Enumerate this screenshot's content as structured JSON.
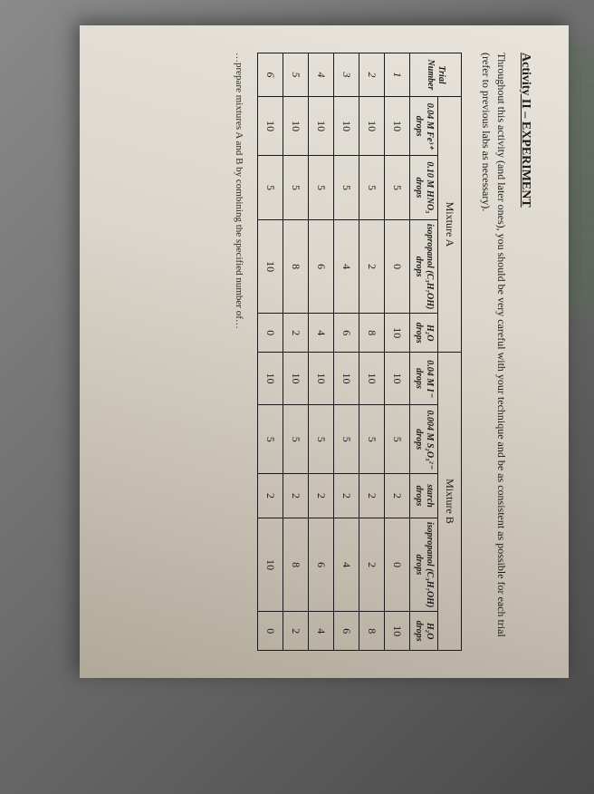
{
  "title": "Activity II – EXPERIMENT",
  "intro": "Throughout this activity (and later ones), you should be very careful with your technique and be as consistent as possible for each trial (refer to previous labs as necessary).",
  "table": {
    "mixtureA_label": "Mixture A",
    "mixtureB_label": "Mixture B",
    "trial_header": "Trial Number",
    "columns_a": [
      "0.04 M Fe³⁺ drops",
      "0.10 M HNO₃ drops",
      "isopropanol (C₃H₇OH) drops",
      "H₂O drops"
    ],
    "columns_b": [
      "0.04 M I⁻ drops",
      "0.004 M S₂O₃²⁻ drops",
      "starch drops",
      "isopropanol (C₃H₇OH) drops",
      "H₂O drops"
    ],
    "rows": [
      {
        "trial": "1",
        "a": [
          "10",
          "5",
          "0",
          "10"
        ],
        "b": [
          "10",
          "5",
          "2",
          "0",
          "10"
        ]
      },
      {
        "trial": "2",
        "a": [
          "10",
          "5",
          "2",
          "8"
        ],
        "b": [
          "10",
          "5",
          "2",
          "2",
          "8"
        ]
      },
      {
        "trial": "3",
        "a": [
          "10",
          "5",
          "4",
          "6"
        ],
        "b": [
          "10",
          "5",
          "2",
          "4",
          "6"
        ]
      },
      {
        "trial": "4",
        "a": [
          "10",
          "5",
          "6",
          "4"
        ],
        "b": [
          "10",
          "5",
          "2",
          "6",
          "4"
        ]
      },
      {
        "trial": "5",
        "a": [
          "10",
          "5",
          "8",
          "2"
        ],
        "b": [
          "10",
          "5",
          "2",
          "8",
          "2"
        ]
      },
      {
        "trial": "6",
        "a": [
          "10",
          "5",
          "10",
          "0"
        ],
        "b": [
          "10",
          "5",
          "2",
          "10",
          "0"
        ]
      }
    ]
  },
  "footer": "…prepare mixtures A and B by combining the specified number of…",
  "colors": {
    "paper_bg": "#dcd6cc",
    "text": "#1a1a1a",
    "border": "#1a1a1a"
  }
}
